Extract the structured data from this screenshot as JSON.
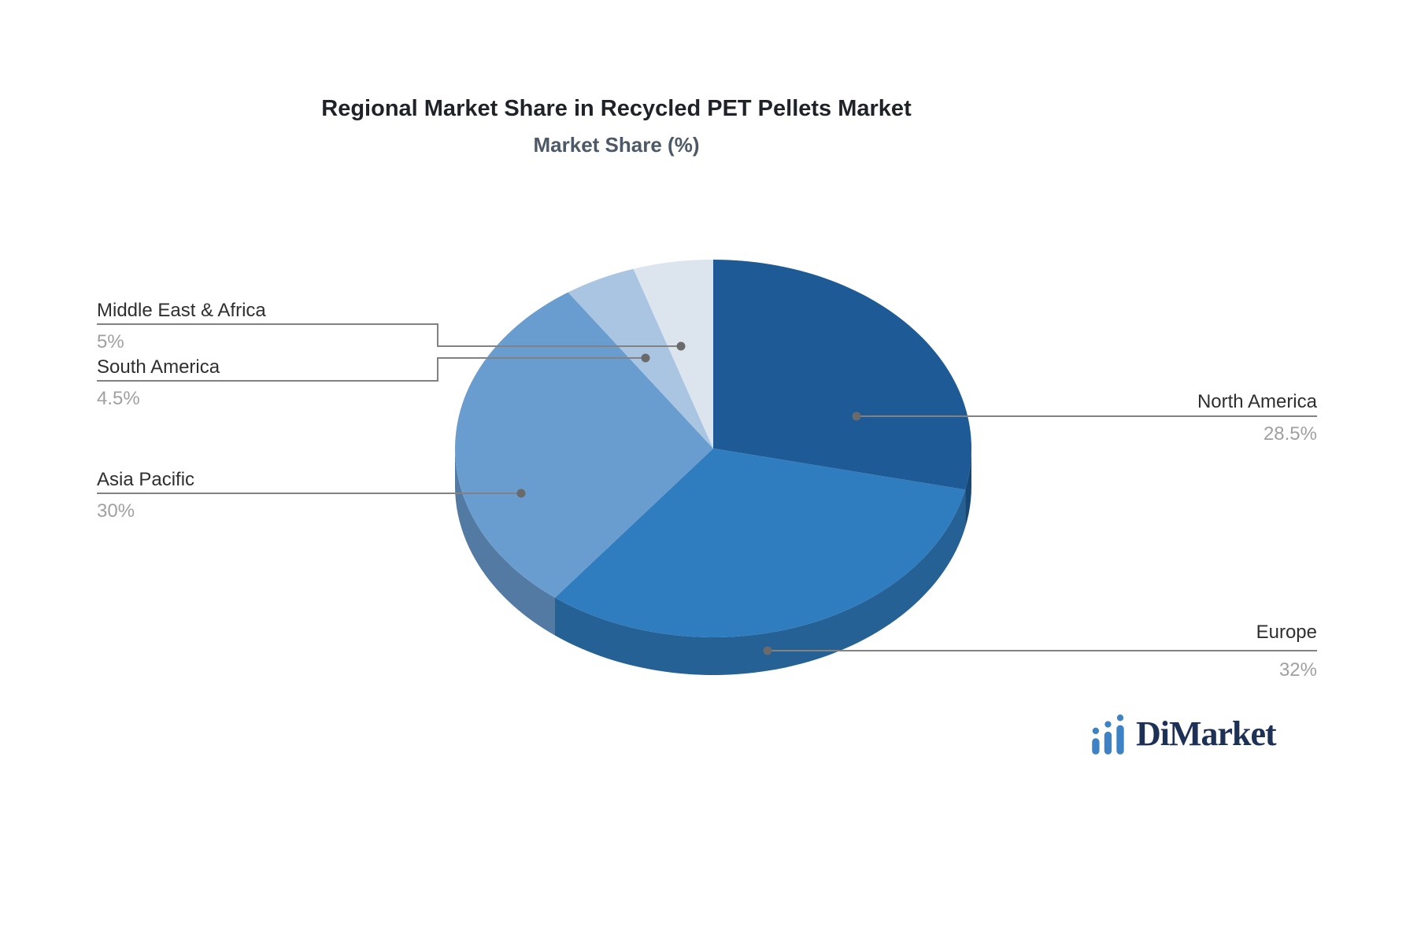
{
  "title": "Regional Market Share in Recycled PET Pellets Market",
  "subtitle": "Market Share (%)",
  "watermark": "DiMarket",
  "chart_data": {
    "type": "pie",
    "title": "Regional Market Share in Recycled PET Pellets Market",
    "subtitle": "Market Share (%)",
    "unit": "%",
    "effect": "3d",
    "direction": "clockwise",
    "start_angle_deg": 0,
    "legend_position": "callout-labels",
    "slices": [
      {
        "label": "North America",
        "value": 28.5,
        "display_value": "28.5%",
        "color": "#1e5b96",
        "label_side": "right"
      },
      {
        "label": "Europe",
        "value": 32,
        "display_value": "32%",
        "color": "#2f7cbf",
        "label_side": "right"
      },
      {
        "label": "Asia Pacific",
        "value": 30,
        "display_value": "30%",
        "color": "#699dd0",
        "label_side": "left"
      },
      {
        "label": "South America",
        "value": 4.5,
        "display_value": "4.5%",
        "color": "#a9c5e1",
        "label_side": "left"
      },
      {
        "label": "Middle East & Africa",
        "value": 5,
        "display_value": "5%",
        "color": "#dce4ee",
        "label_side": "left"
      }
    ]
  },
  "colors": {
    "leader_line": "#828282",
    "leader_dot": "#6a6a6a",
    "label_text": "#2f2f2f",
    "value_text": "#a0a0a0",
    "title_text": "#1f2328",
    "subtitle_text": "#4d5966",
    "logo_blue": "#3c82c4",
    "logo_navy": "#1d3157"
  }
}
